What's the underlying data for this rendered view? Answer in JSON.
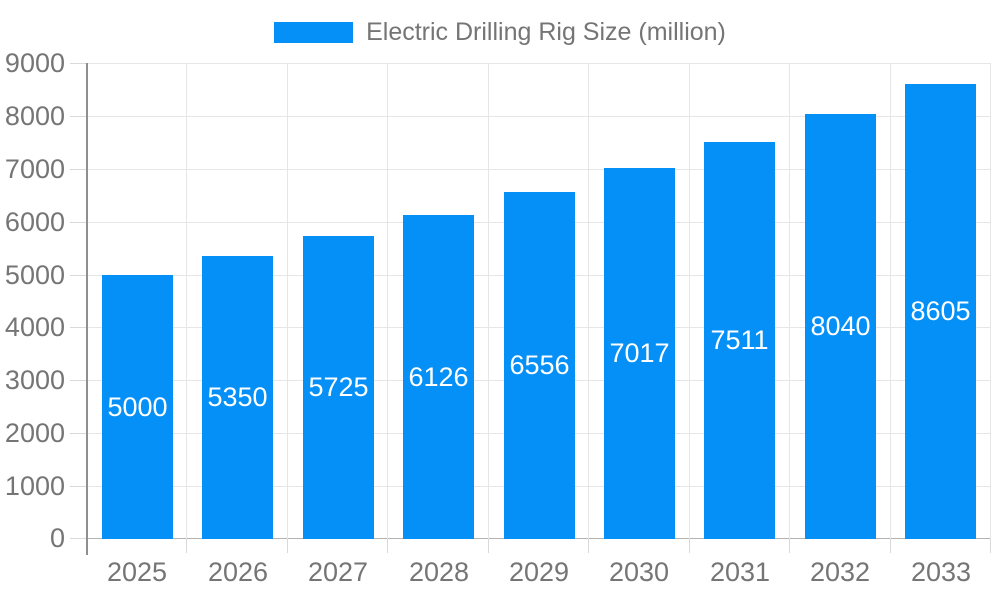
{
  "chart_data": {
    "type": "bar",
    "title": "Electric Drilling Rig Size (million)",
    "legend": {
      "position": "top",
      "label": "Electric Drilling Rig Size (million)"
    },
    "categories": [
      "2025",
      "2026",
      "2027",
      "2028",
      "2029",
      "2030",
      "2031",
      "2032",
      "2033"
    ],
    "series": [
      {
        "name": "Electric Drilling Rig Size (million)",
        "values": [
          5000,
          5350,
          5725,
          6126,
          6556,
          7017,
          7511,
          8040,
          8605
        ]
      }
    ],
    "xlabel": "",
    "ylabel": "",
    "ylim": [
      0,
      9000
    ],
    "yticks": [
      0,
      1000,
      2000,
      3000,
      4000,
      5000,
      6000,
      7000,
      8000,
      9000
    ],
    "grid": true,
    "value_label_position": "inside-center",
    "colors": {
      "bar": "#0590f8",
      "bar_label": "#ffffff",
      "axis_text": "#757575",
      "grid_line": "#e6e6e6",
      "axis_line": "#8f8f8f",
      "baseline": "#b3b3b3",
      "tick": "#d9d9d9",
      "background": "#ffffff"
    }
  }
}
